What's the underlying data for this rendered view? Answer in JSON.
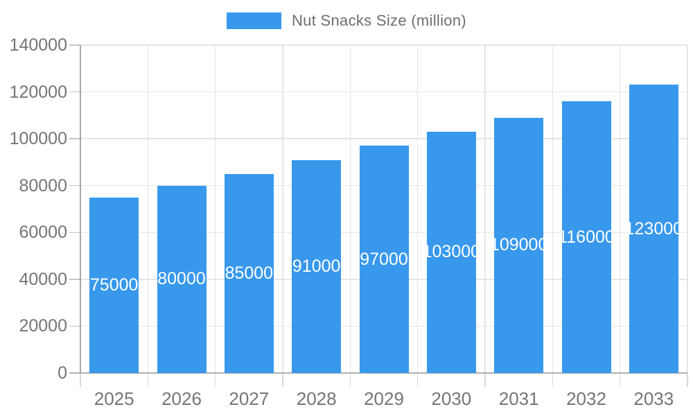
{
  "legend": {
    "label": "Nut Snacks Size (million)"
  },
  "colors": {
    "bar": "#3898EC",
    "grid": "#e5e5e5",
    "axis": "#a6a6a6",
    "axis_text": "#757575",
    "legend_text": "#6e6e6e",
    "bar_label_text": "#ffffff",
    "background": "#ffffff"
  },
  "chart_data": {
    "type": "bar",
    "title": "",
    "legend_entries": [
      "Nut Snacks Size (million)"
    ],
    "legend_position": "top",
    "categories": [
      "2025",
      "2026",
      "2027",
      "2028",
      "2029",
      "2030",
      "2031",
      "2032",
      "2033"
    ],
    "series": [
      {
        "name": "Nut Snacks Size (million)",
        "values": [
          75000,
          80000,
          85000,
          91000,
          97000,
          103000,
          109000,
          116000,
          123000
        ]
      }
    ],
    "bar_labels": [
      "75000",
      "80000",
      "85000",
      "91000",
      "97000",
      "103000",
      "109000",
      "116000",
      "123000"
    ],
    "xlabel": "",
    "ylabel": "",
    "ylim": [
      0,
      140000
    ],
    "yticks": [
      0,
      20000,
      40000,
      60000,
      80000,
      100000,
      120000,
      140000
    ],
    "ytick_labels": [
      "0",
      "20000",
      "40000",
      "60000",
      "80000",
      "100000",
      "120000",
      "140000"
    ],
    "grid": true
  }
}
